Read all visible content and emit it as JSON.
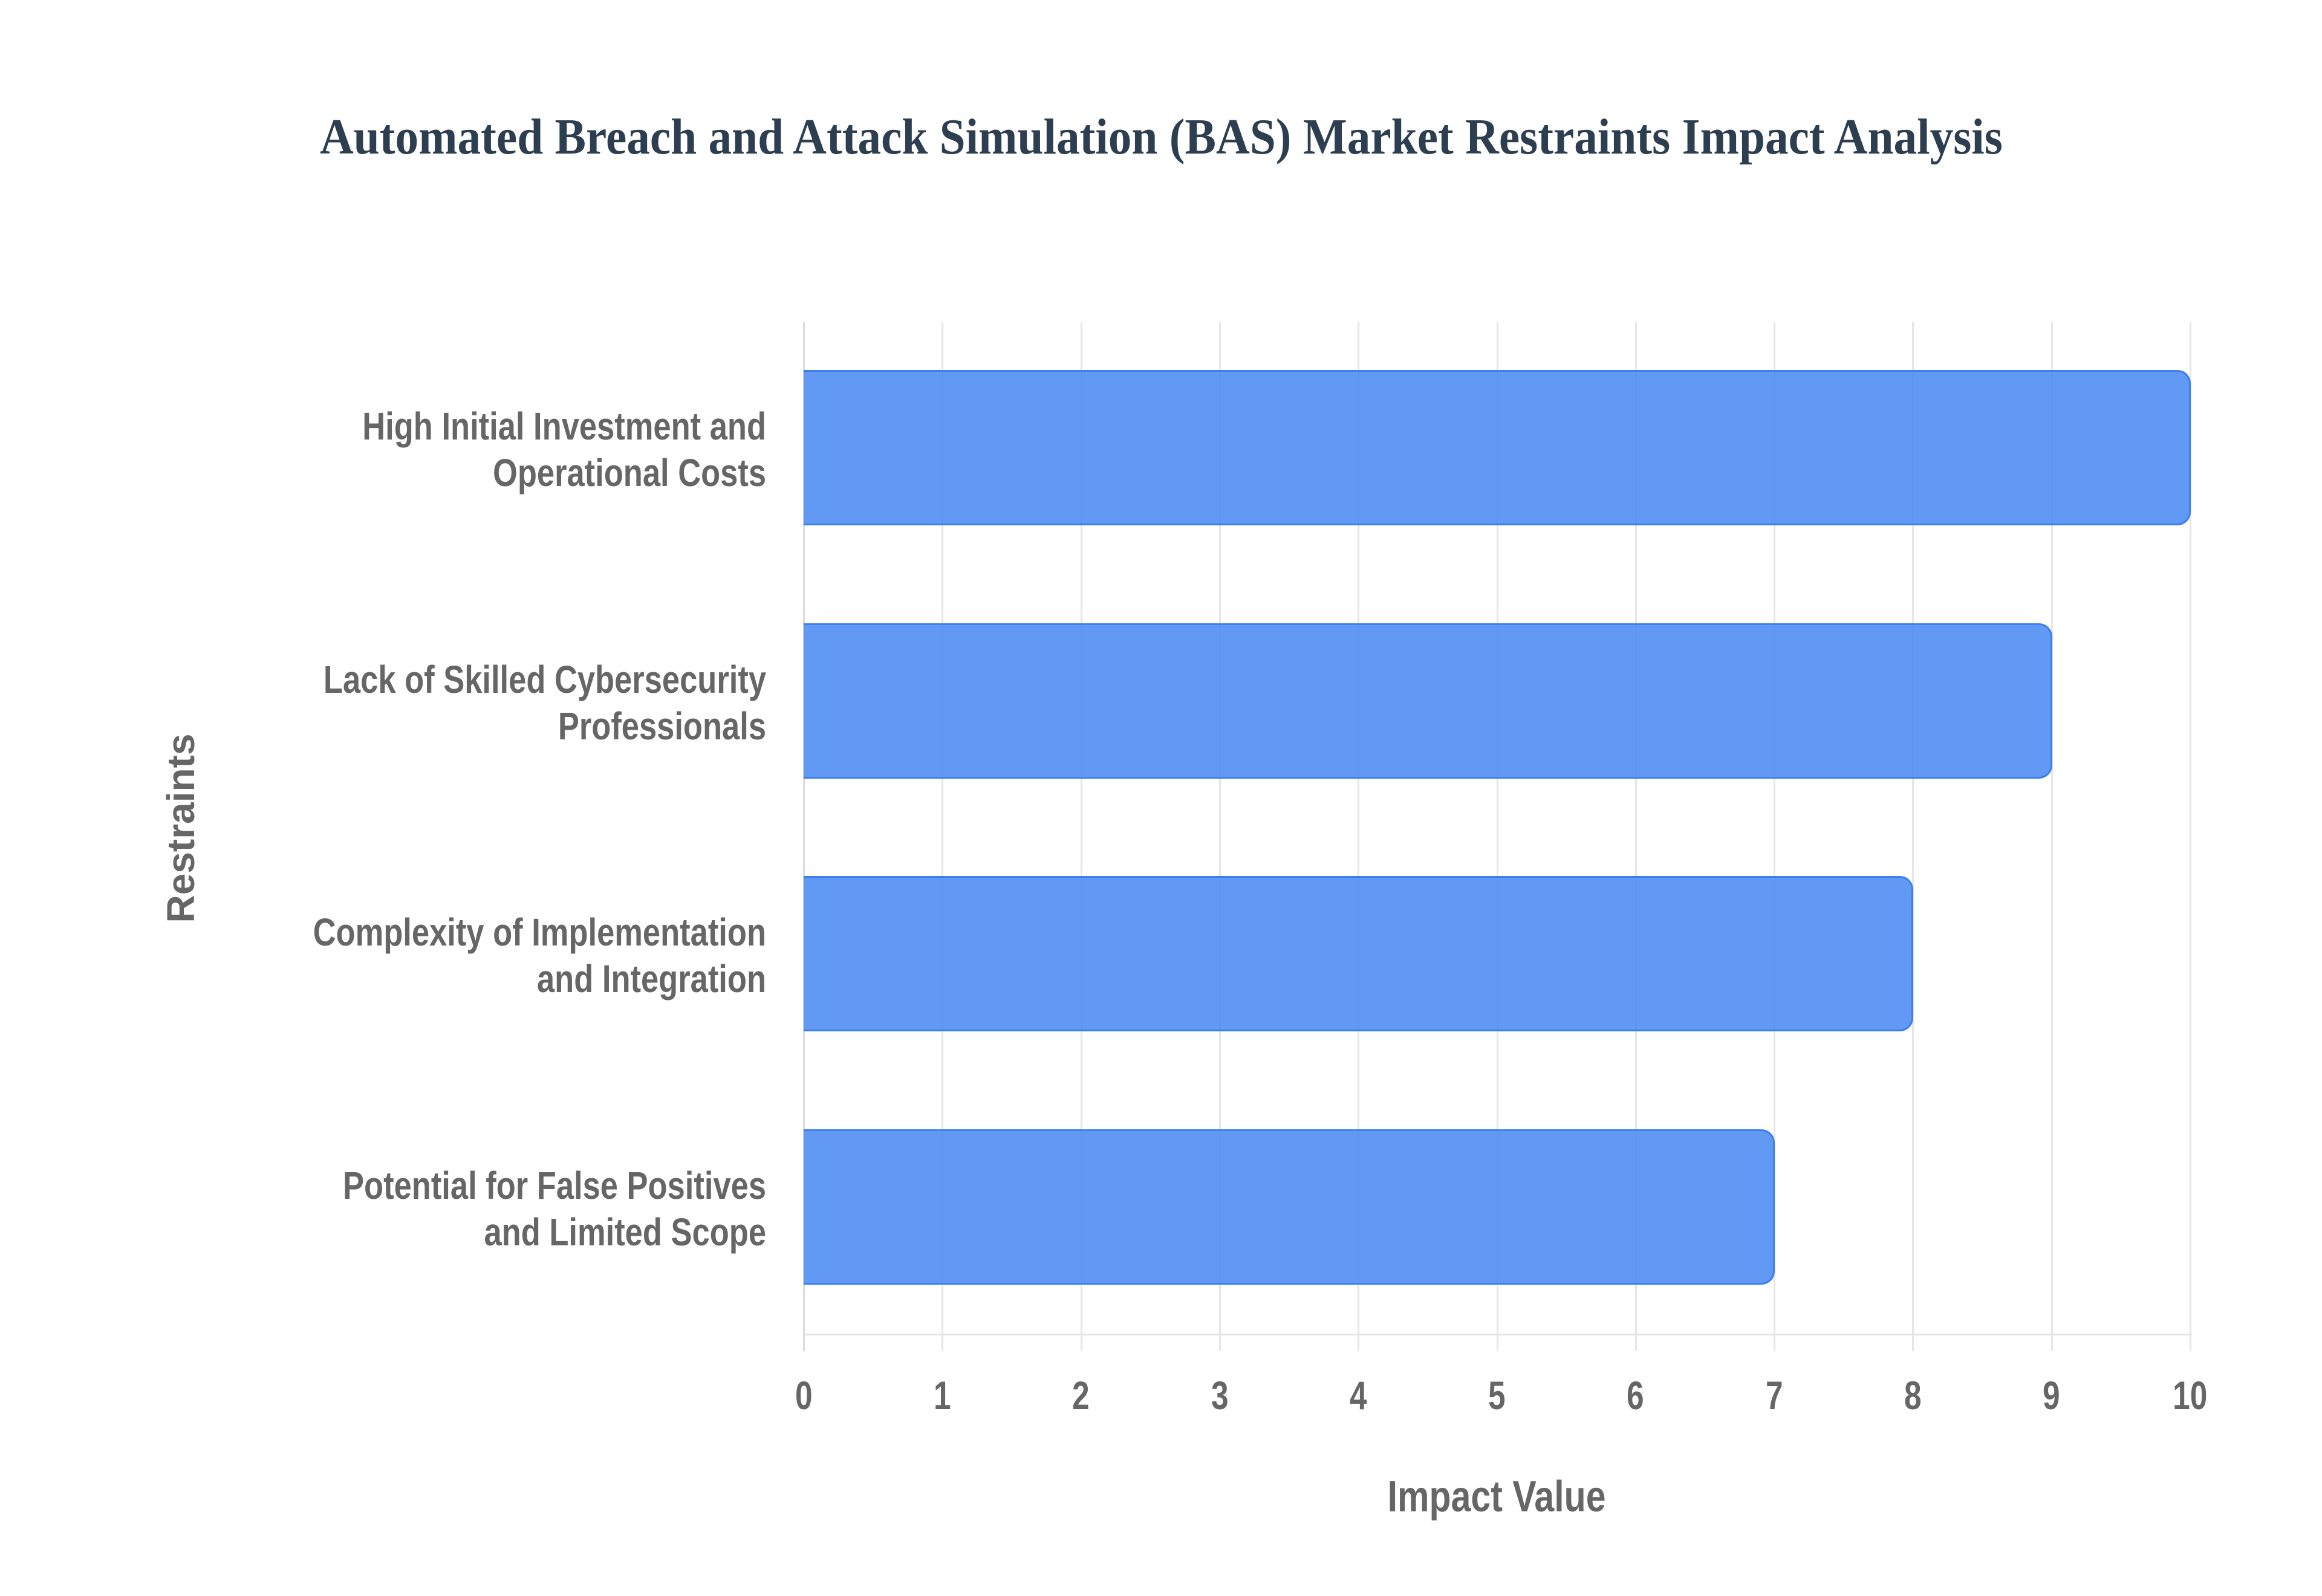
{
  "chart_data": {
    "type": "bar",
    "orientation": "horizontal",
    "title": "Automated Breach and Attack Simulation (BAS) Market Restraints Impact Analysis",
    "xlabel": "Impact Value",
    "ylabel": "Restraints",
    "categories": [
      "High Initial Investment and Operational Costs",
      "Lack of Skilled Cybersecurity Professionals",
      "Complexity of Implementation and Integration",
      "Potential for False Positives and Limited Scope"
    ],
    "category_lines": [
      [
        "High Initial Investment and",
        "Operational Costs"
      ],
      [
        "Lack of Skilled Cybersecurity",
        "Professionals"
      ],
      [
        "Complexity of Implementation",
        "and Integration"
      ],
      [
        "Potential for False Positives",
        "and Limited Scope"
      ]
    ],
    "values": [
      10,
      9,
      8,
      7
    ],
    "xlim": [
      0,
      10
    ],
    "xticks": [
      "0",
      "1",
      "2",
      "3",
      "4",
      "5",
      "6",
      "7",
      "8",
      "9",
      "10"
    ],
    "grid": true,
    "legend": null,
    "colors": {
      "bar_fill": "#6199f5",
      "bar_border": "#3b7ff0",
      "title": "#2c3e50",
      "axis_text": "#666666",
      "grid": "#e6e6e6"
    }
  }
}
